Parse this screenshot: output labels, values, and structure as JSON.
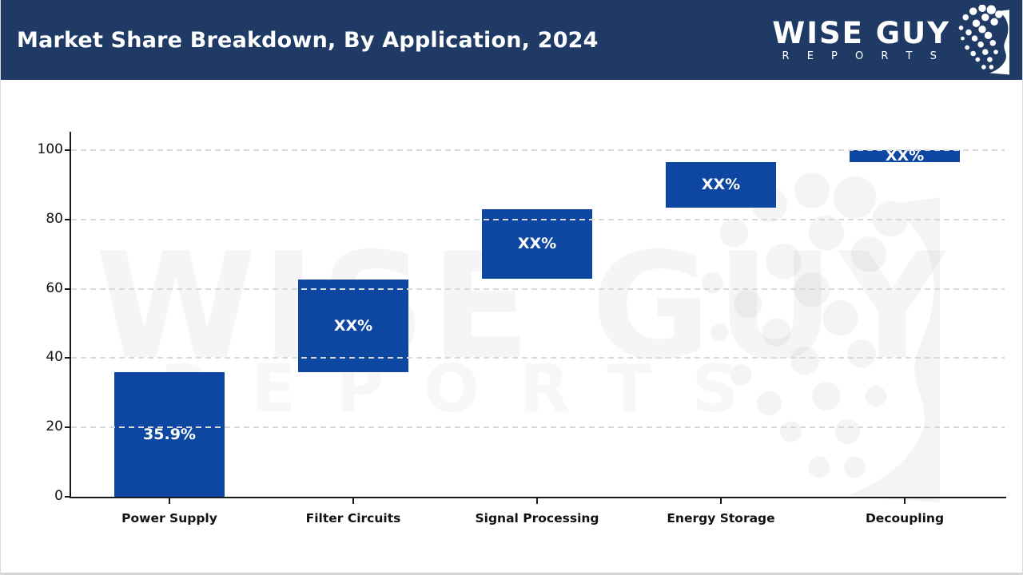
{
  "header": {
    "title": "Market Share Breakdown, By Application, 2024",
    "logo": {
      "line1": "WISE GUY",
      "line2": "R E P O R T S",
      "icon": "dotted-face-profile-icon"
    }
  },
  "watermark": {
    "line1": "WISE GUY",
    "line2": "REPORTS",
    "icon": "dotted-face-profile-watermark"
  },
  "chart_data": {
    "type": "waterfall",
    "title": "Market Share Breakdown, By Application, 2024",
    "categories": [
      "Power Supply",
      "Filter Circuits",
      "Signal Processing",
      "Energy Storage",
      "Decoupling"
    ],
    "segments": [
      {
        "category": "Power Supply",
        "start": 0,
        "end": 35.9,
        "label": "35.9%"
      },
      {
        "category": "Filter Circuits",
        "start": 35.9,
        "end": 62.6,
        "label": "XX%"
      },
      {
        "category": "Signal Processing",
        "start": 63,
        "end": 83,
        "label": "XX%"
      },
      {
        "category": "Energy Storage",
        "start": 83.5,
        "end": 96.6,
        "label": "XX%"
      },
      {
        "category": "Decoupling",
        "start": 96.6,
        "end": 100,
        "label": "XX%"
      }
    ],
    "unit": "%",
    "ylim": [
      0,
      100
    ],
    "yticks": [
      0,
      20,
      40,
      60,
      80,
      100
    ],
    "xlabel": "",
    "ylabel": "",
    "grid": "horizontal-dashed",
    "legend": "none",
    "bar_color": "#0d47a1",
    "bar_label_color": "#ffffff"
  },
  "colors": {
    "header_bg": "#203a66",
    "bar": "#0d47a1",
    "grid": "#d9d9d9",
    "axis": "#1a1a1a",
    "text": "#111111",
    "title_text": "#ffffff"
  }
}
